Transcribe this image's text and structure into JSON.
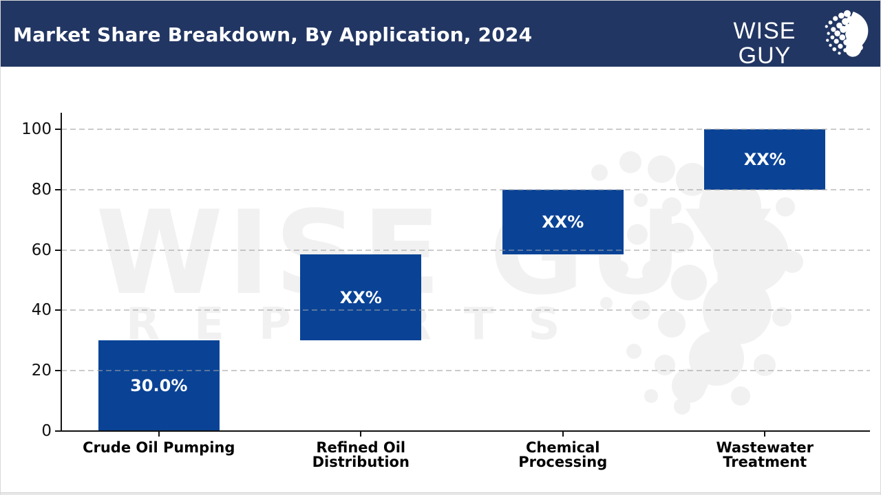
{
  "header": {
    "title": "Market Share Breakdown, By Application, 2024",
    "bg_color": "#223663",
    "logo": {
      "line1": "WISE GUY",
      "line2": "REPORTS"
    }
  },
  "watermark": {
    "line1": "WISE GUY",
    "line2": "REPORTS"
  },
  "colors": {
    "bar_blue": "#0a4396",
    "header_navy": "#223663",
    "grid_gray": "#c8c8c8",
    "watermark_gray": "#f1f1f1",
    "axis_black": "#111111",
    "bottom_rule_gray": "#d9d9d9"
  },
  "chart_data": {
    "type": "bar",
    "subtype": "waterfall",
    "title": "Market Share Breakdown, By Application, 2024",
    "xlabel": "",
    "ylabel": "",
    "ylim": [
      0,
      105
    ],
    "yticks": [
      0,
      20,
      40,
      60,
      80,
      100
    ],
    "grid": "horizontal-dashed-over-bars",
    "legend": "none",
    "bar_color": "#0a4396",
    "categories": [
      [
        "Crude Oil Pumping"
      ],
      [
        "Refined Oil",
        "Distribution"
      ],
      [
        "Chemical",
        "Processing"
      ],
      [
        "Wastewater",
        "Treatment"
      ]
    ],
    "segments": [
      {
        "label": "30.0%",
        "start": 0,
        "end": 30
      },
      {
        "label": "XX%",
        "start": 30,
        "end": 58.6
      },
      {
        "label": "XX%",
        "start": 58.6,
        "end": 80
      },
      {
        "label": "XX%",
        "start": 80,
        "end": 100
      }
    ]
  }
}
